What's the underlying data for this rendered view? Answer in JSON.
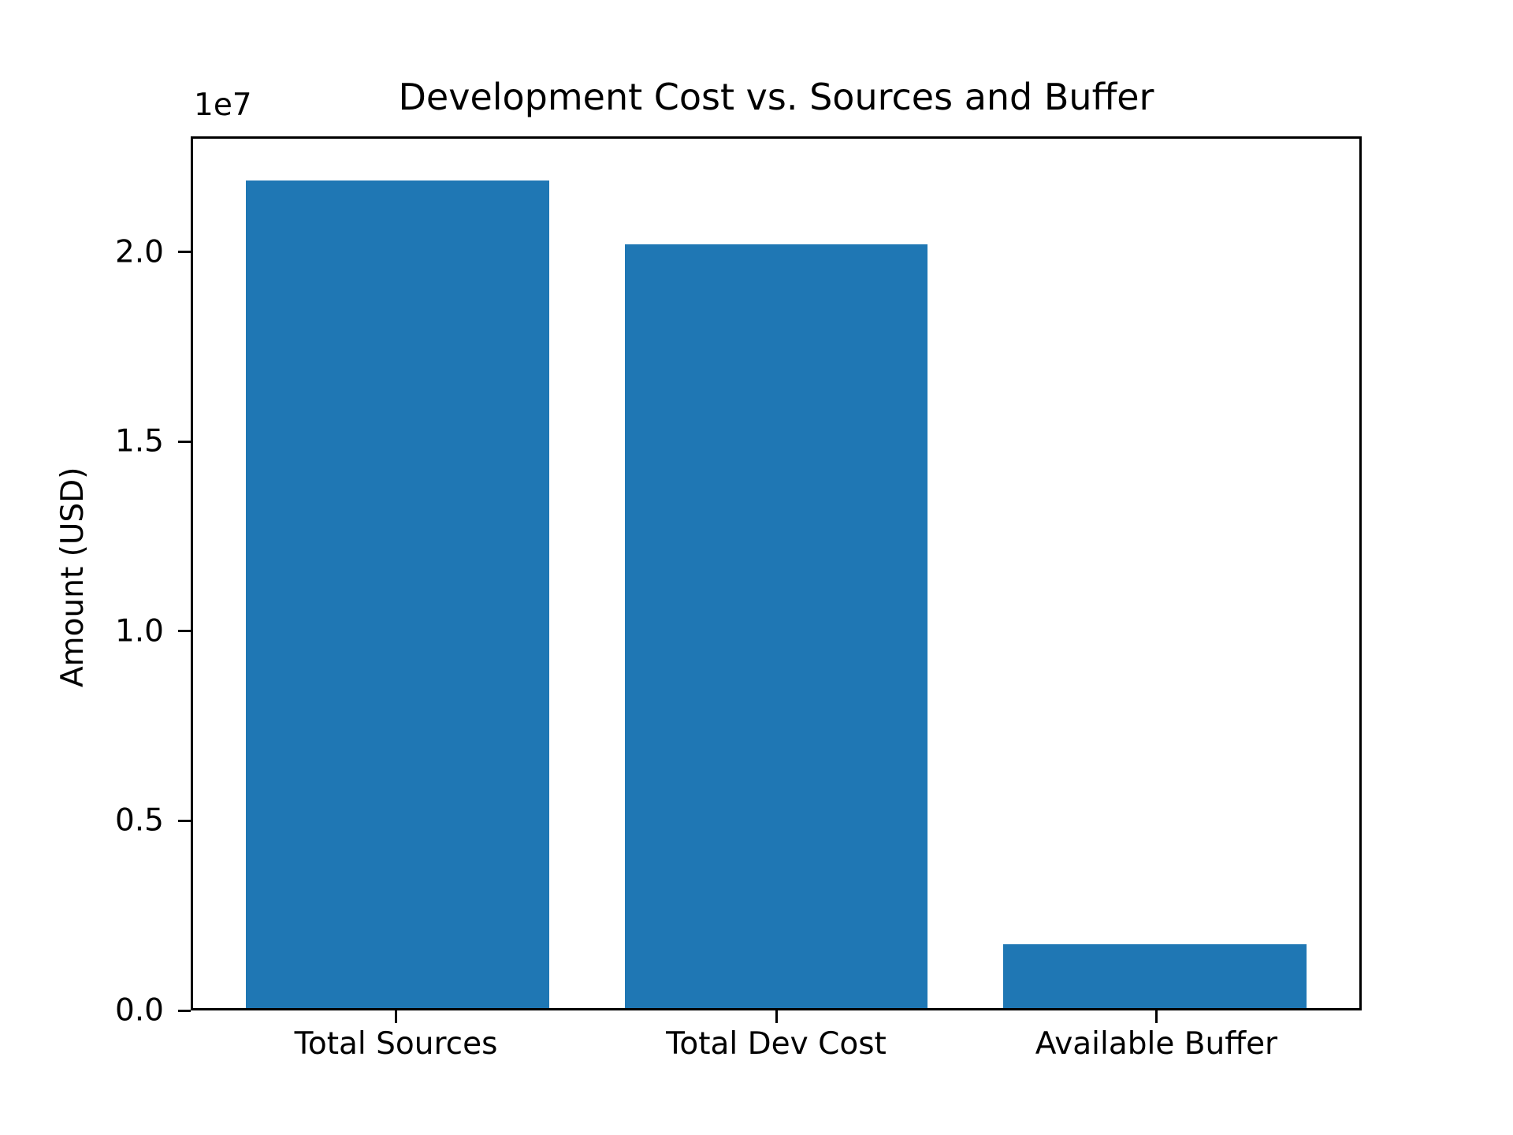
{
  "chart_data": {
    "type": "bar",
    "title": "Development Cost vs. Sources and Buffer",
    "xlabel": "",
    "ylabel": "Amount (USD)",
    "y_offset_text": "1e7",
    "categories": [
      "Total Sources",
      "Total Dev Cost",
      "Available Buffer"
    ],
    "values": [
      21950000,
      20250000,
      1700000
    ],
    "yticks": [
      0,
      5000000,
      10000000,
      15000000,
      20000000
    ],
    "ytick_labels": [
      "0.0",
      "0.5",
      "1.0",
      "1.5",
      "2.0"
    ],
    "ylim": [
      0,
      23050000
    ],
    "xlim": [
      -0.54,
      2.54
    ],
    "bar_width": 0.8,
    "bar_color": "#1f77b4",
    "axes_color": "#000000",
    "background_color": "#ffffff",
    "grid": false,
    "legend": false
  }
}
